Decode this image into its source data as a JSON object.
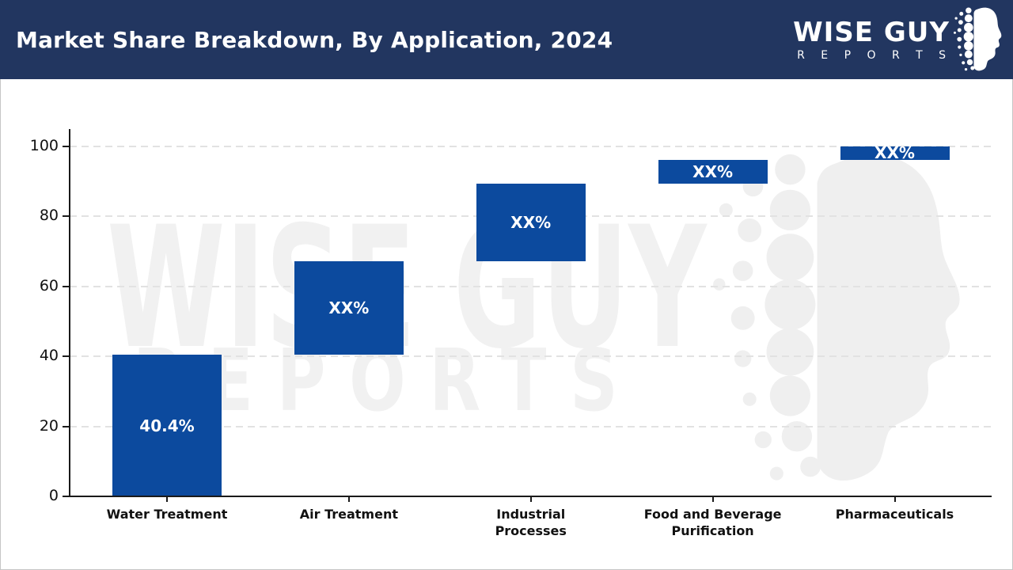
{
  "header": {
    "title": "Market Share Breakdown, By Application, 2024",
    "bg_color": "#223660",
    "logo": {
      "line1": "WISE GUY",
      "line2": "R E P O R T S"
    }
  },
  "watermark": {
    "line1": "WISE GUY",
    "line2": "REPORTS"
  },
  "chart_data": {
    "type": "bar",
    "subtype": "waterfall-stacked-breakdown",
    "title": "Market Share Breakdown, By Application, 2024",
    "categories": [
      "Water Treatment",
      "Air Treatment",
      "Industrial Processes",
      "Food and Beverage Purification",
      "Pharmaceuticals"
    ],
    "tick_labels": [
      "Water Treatment",
      "Air Treatment",
      "Industrial\nProcesses",
      "Food and Beverage\nPurification",
      "Pharmaceuticals"
    ],
    "segments": [
      {
        "category": "Water Treatment",
        "start": 0,
        "end": 40.4,
        "label": "40.4%"
      },
      {
        "category": "Air Treatment",
        "start": 40.4,
        "end": 67.2,
        "label": "XX%"
      },
      {
        "category": "Industrial Processes",
        "start": 67.2,
        "end": 89.4,
        "label": "XX%"
      },
      {
        "category": "Food and Beverage Purification",
        "start": 89.4,
        "end": 96.2,
        "label": "XX%"
      },
      {
        "category": "Pharmaceuticals",
        "start": 96.2,
        "end": 100,
        "label": "XX%"
      }
    ],
    "ylim": [
      0,
      100
    ],
    "yticks": [
      0,
      20,
      40,
      60,
      80,
      100
    ],
    "grid": "dashed-horizontal",
    "legend": "none",
    "bar_color": "#0c4a9e",
    "bar_label_color": "#ffffff",
    "axis_color": "#1a1a1a"
  }
}
